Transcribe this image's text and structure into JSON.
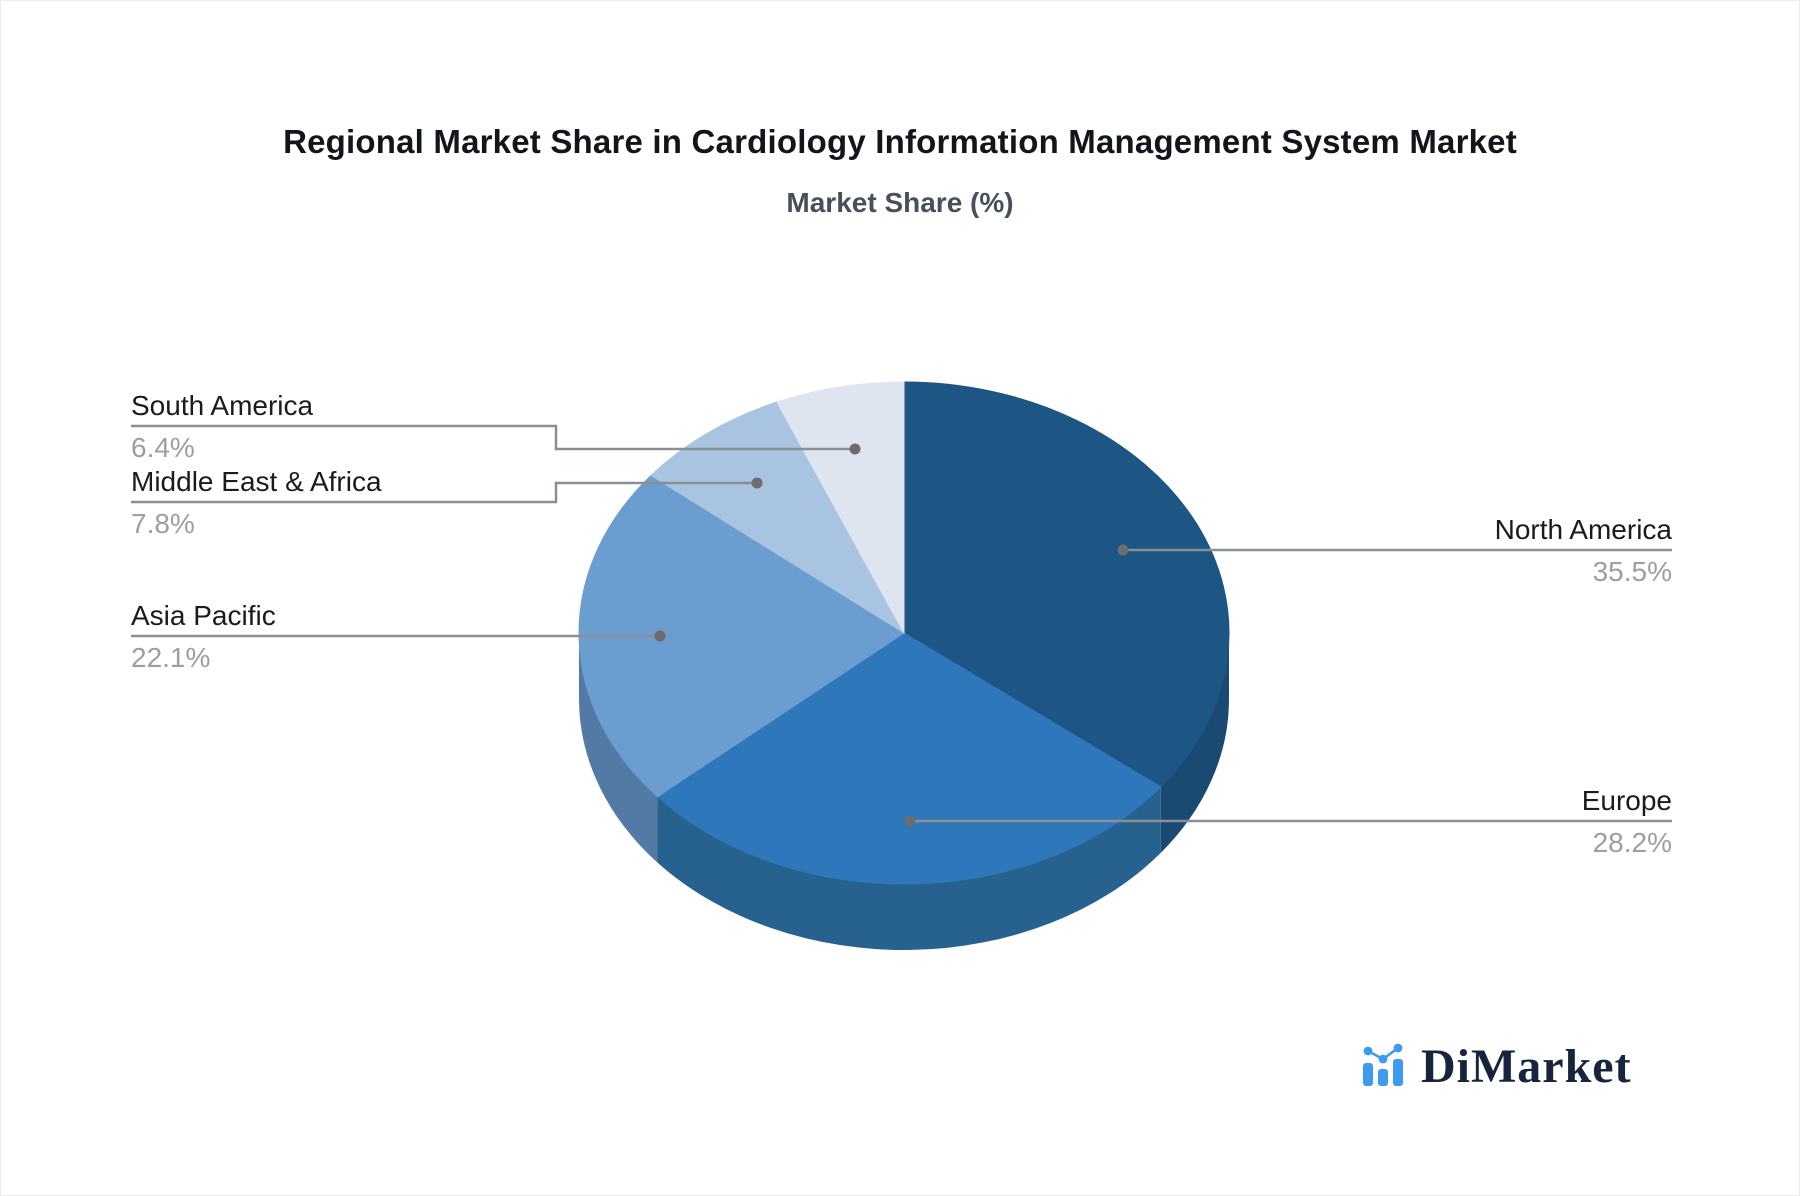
{
  "header": {
    "title": "Regional Market Share in Cardiology Information Management System Market",
    "subtitle": "Market Share (%)"
  },
  "chart_data": {
    "type": "pie",
    "style_3d": true,
    "title": "Regional Market Share in Cardiology Information Management System Market",
    "subtitle": "Market Share (%)",
    "unit": "%",
    "start_angle_deg": 0,
    "direction": "clockwise",
    "legend": "none",
    "slices": [
      {
        "name": "North America",
        "value": 35.5,
        "pct_label": "35.5%",
        "color": "#1d5584",
        "side_color": "#1a4a71",
        "label_side": "right"
      },
      {
        "name": "Europe",
        "value": 28.2,
        "pct_label": "28.2%",
        "color": "#2e77ba",
        "side_color": "#27628f",
        "label_side": "right"
      },
      {
        "name": "Asia Pacific",
        "value": 22.1,
        "pct_label": "22.1%",
        "color": "#6c9dd1",
        "side_color": "#527aa4",
        "label_side": "left"
      },
      {
        "name": "Middle East & Africa",
        "value": 7.8,
        "pct_label": "7.8%",
        "color": "#a9c4e0",
        "label_side": "left"
      },
      {
        "name": "South America",
        "value": 6.4,
        "pct_label": "6.4%",
        "color": "#dee5f0",
        "label_side": "left"
      }
    ],
    "leader_line_color": "#8a8f94",
    "leader_dot_color": "#6d6d6d",
    "label_name_color": "#1b1b1b",
    "label_pct_color": "#9b9ea3"
  },
  "logo": {
    "text": "DiMarket",
    "icon": "bar-line-chart-icon",
    "icon_color": "#3f9bf0",
    "text_color": "#16243d"
  }
}
